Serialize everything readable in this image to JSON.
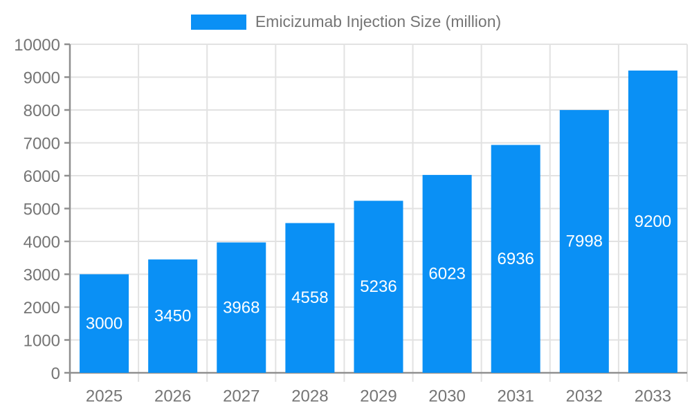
{
  "legend": {
    "label": "Emicizumab Injection Size (million)"
  },
  "colors": {
    "bar": "#0a90f5",
    "grid": "#e2e2e2",
    "axis": "#8f8f8f",
    "tick_text": "#757575",
    "bar_label_text": "#ffffff",
    "background": "#ffffff"
  },
  "chart_data": {
    "type": "bar",
    "title": "Emicizumab Injection Size (million)",
    "categories": [
      "2025",
      "2026",
      "2027",
      "2028",
      "2029",
      "2030",
      "2031",
      "2032",
      "2033"
    ],
    "values": [
      3000,
      3450,
      3968,
      4558,
      5236,
      6023,
      6936,
      7998,
      9200
    ],
    "xlabel": "",
    "ylabel": "",
    "ylim": [
      0,
      10000
    ],
    "ytick_step": 1000,
    "yticks": [
      0,
      1000,
      2000,
      3000,
      4000,
      5000,
      6000,
      7000,
      8000,
      9000,
      10000
    ],
    "grid": true,
    "legend_position": "top-center",
    "bar_labels": "inside-center"
  }
}
